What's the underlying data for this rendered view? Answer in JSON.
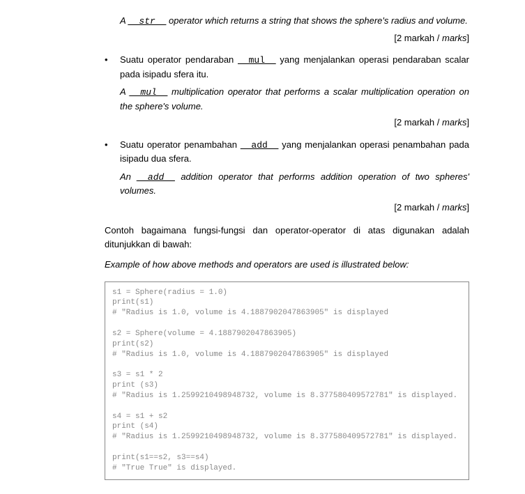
{
  "str_op": {
    "italic_line": "<span class='italic'>A </span><span class='italic mono under'>__str__</span><span class='italic'> operator which returns a string that shows the sphere's radius and volume.</span>",
    "marks": "[2 markah / <span class='italic'>marks</span>]"
  },
  "mul_op": {
    "main_text": "Suatu operator pendaraban <span class='mono under'>__mul__</span> yang menjalankan operasi pendaraban scalar pada isipadu sfera itu.",
    "italic_line": "<span class='italic'>A </span><span class='italic mono under'>__mul__</span><span class='italic'> multiplication operator that performs a scalar multiplication operation on the sphere's volume.</span>",
    "marks": "[2 markah / <span class='italic'>marks</span>]"
  },
  "add_op": {
    "main_text": "Suatu operator penambahan <span class='mono under'>__add__</span> yang menjalankan operasi penambahan pada isipadu dua sfera.",
    "italic_line": "<span class='italic'>An </span><span class='italic mono under'>__add__</span><span class='italic'> addition operator that performs addition operation of two spheres' volumes.</span>",
    "marks": "[2 markah / <span class='italic'>marks</span>]"
  },
  "explain": {
    "main": "Contoh bagaimana fungsi-fungsi dan operator-operator di atas digunakan adalah ditunjukkan di bawah:",
    "italic": "Example of how above methods and operators are used is illustrated below:"
  },
  "code": "s1 = Sphere(radius = 1.0)\nprint(s1)\n# \"Radius is 1.0, volume is 4.1887902047863905\" is displayed\n\ns2 = Sphere(volume = 4.1887902047863905)\nprint(s2)\n# \"Radius is 1.0, volume is 4.1887902047863905\" is displayed\n\ns3 = s1 * 2\nprint (s3)\n# \"Radius is 1.2599210498948732, volume is 8.377580409572781\" is displayed.\n\ns4 = s1 + s2\nprint (s4)\n# \"Radius is 1.2599210498948732, volume is 8.377580409572781\" is displayed.\n\nprint(s1==s2, s3==s4)\n# \"True True\" is displayed."
}
